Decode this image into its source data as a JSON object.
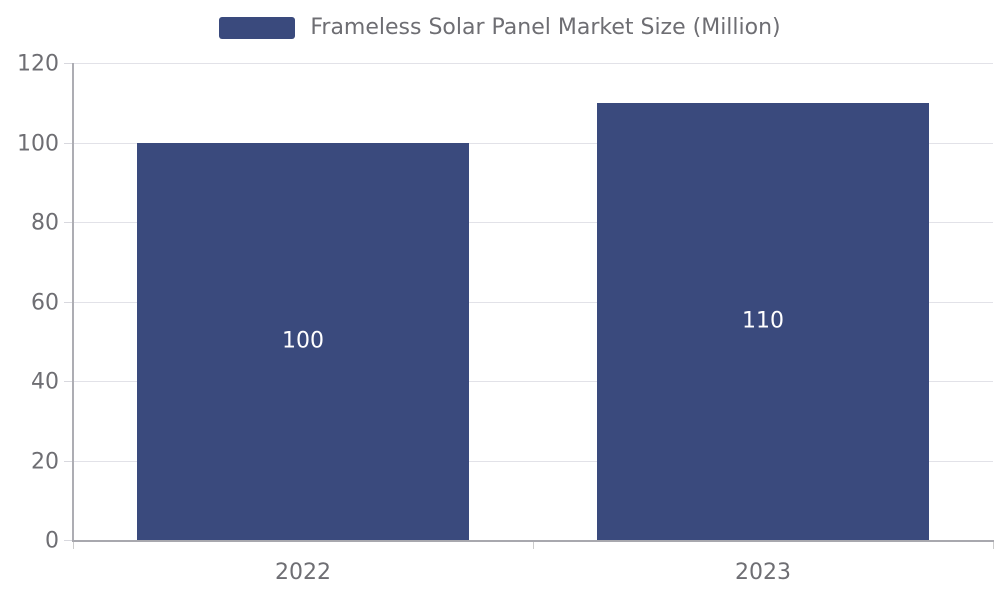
{
  "chart_data": {
    "type": "bar",
    "title": "Frameless Solar Panel Market Size (Million)",
    "legend": {
      "label": "Frameless Solar Panel Market Size (Million)",
      "position": "top",
      "swatch_color": "#3a4a7d"
    },
    "categories": [
      "2022",
      "2023"
    ],
    "series": [
      {
        "name": "Frameless Solar Panel Market Size (Million)",
        "values": [
          100,
          110
        ],
        "data_labels": [
          "100",
          "110"
        ],
        "label_position": "inside-center"
      }
    ],
    "xlabel": "",
    "ylabel": "",
    "ylim": [
      0,
      120
    ],
    "yticks": [
      0,
      20,
      40,
      60,
      80,
      100,
      120
    ],
    "grid": true,
    "colors": {
      "bar": "#3a4a7d",
      "bar_label": "#ffffff",
      "axis_text": "#6e6e73",
      "gridline": "#e2e2e8",
      "axis_line": "#aaaaaa",
      "background": "#ffffff"
    }
  }
}
